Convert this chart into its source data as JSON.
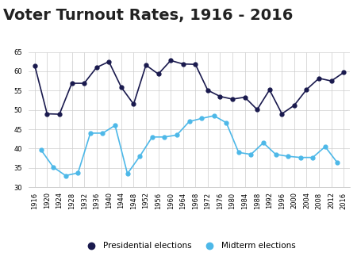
{
  "title": "Voter Turnout Rates, 1916 - 2016",
  "presidential_years": [
    1916,
    1920,
    1924,
    1928,
    1932,
    1936,
    1940,
    1944,
    1948,
    1952,
    1956,
    1960,
    1964,
    1968,
    1972,
    1976,
    1980,
    1984,
    1988,
    1992,
    1996,
    2000,
    2004,
    2008,
    2012,
    2016
  ],
  "presidential_values": [
    61.5,
    49.0,
    48.9,
    56.9,
    56.9,
    61.0,
    62.5,
    55.9,
    51.5,
    61.6,
    59.3,
    62.8,
    61.9,
    61.8,
    55.1,
    53.5,
    52.8,
    53.3,
    50.1,
    55.2,
    49.0,
    51.2,
    55.3,
    58.2,
    57.5,
    59.7
  ],
  "midterm_years": [
    1918,
    1922,
    1926,
    1930,
    1934,
    1938,
    1942,
    1946,
    1950,
    1954,
    1958,
    1962,
    1966,
    1970,
    1974,
    1978,
    1982,
    1986,
    1990,
    1994,
    1998,
    2002,
    2006,
    2010,
    2014
  ],
  "midterm_values": [
    39.7,
    35.2,
    33.0,
    33.7,
    44.0,
    44.0,
    46.0,
    33.5,
    38.0,
    43.0,
    43.0,
    43.5,
    47.0,
    47.8,
    48.5,
    46.7,
    39.0,
    38.5,
    41.5,
    38.5,
    38.0,
    37.7,
    37.7,
    40.5,
    36.3
  ],
  "pres_color": "#1a1a4e",
  "mid_color": "#4db8e8",
  "ylim": [
    30,
    65
  ],
  "yticks": [
    30,
    35,
    40,
    45,
    50,
    55,
    60,
    65
  ],
  "grid_color": "#cccccc",
  "bg_color": "#ffffff",
  "title_fontsize": 14,
  "tick_fontsize": 6,
  "legend_fontsize": 7.5
}
